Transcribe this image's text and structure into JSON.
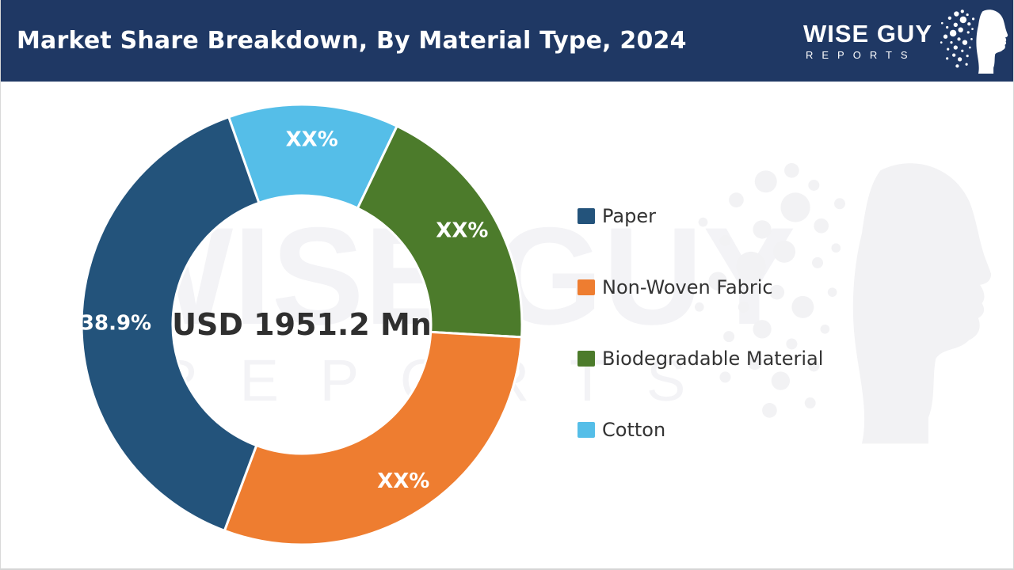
{
  "header": {
    "title": "Market Share Breakdown, By Material Type, 2024",
    "background_color": "#1f3864",
    "logo": {
      "line1": "WISE GUY",
      "line2": "REPORTS"
    }
  },
  "watermark": {
    "line1": "WISE GUY",
    "line2": "REPORTS"
  },
  "chart_data": {
    "type": "pie",
    "subtype": "donut",
    "title": "Market Share Breakdown, By Material Type, 2024",
    "center_label": "USD 1951.2 Mn",
    "direction": "counterclockwise",
    "start_angle_ccw_from_top_deg": 19.4,
    "inner_radius_ratio": 0.585,
    "legend_position": "right",
    "segments": [
      {
        "label": "Paper",
        "display_value": "38.9%",
        "value_pct": 38.9,
        "color": "#23537b"
      },
      {
        "label": "Non-Woven Fabric",
        "display_value": "XX%",
        "value_pct": 29.8,
        "color": "#ee7d30"
      },
      {
        "label": "Biodegradable Material",
        "display_value": "XX%",
        "value_pct": 18.8,
        "color": "#4c7b2b"
      },
      {
        "label": "Cotton",
        "display_value": "XX%",
        "value_pct": 12.5,
        "color": "#55bee8"
      }
    ],
    "values_estimated_from_arc_angles": true
  },
  "colors": {
    "header_bg": "#1f3864",
    "percent_label": "#ffffff",
    "center_text": "#2f2f2f",
    "legend_text": "#333333",
    "watermark": "#f3f3f6"
  }
}
